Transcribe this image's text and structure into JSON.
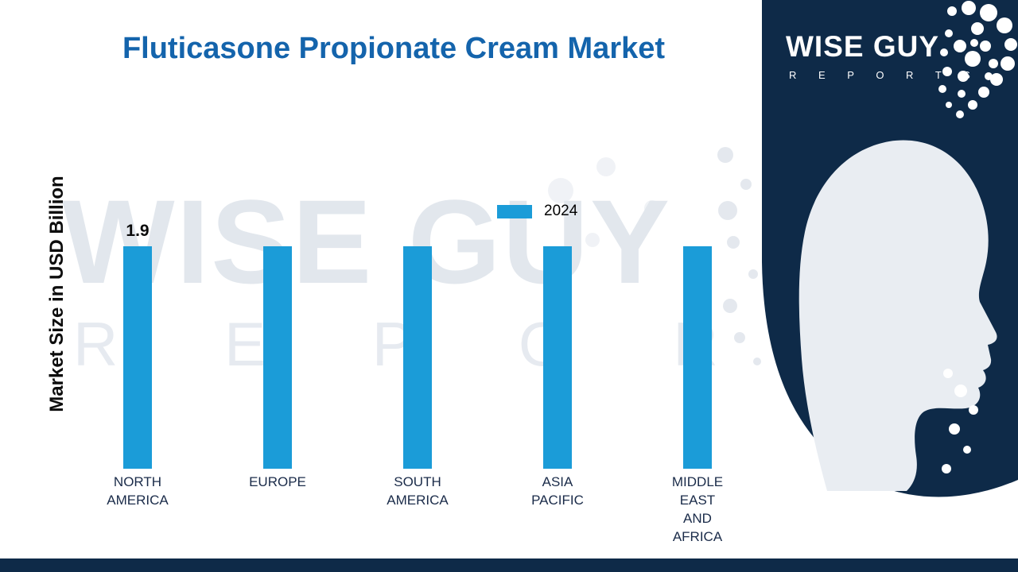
{
  "title": "Fluticasone Propionate Cream Market",
  "logo": {
    "line1": "WISE GUY",
    "line2": "R E P O R T S"
  },
  "watermark": {
    "line1": "WISE GUY",
    "line2": "R E P O R T S"
  },
  "y_axis_label": "Market Size in USD Billion",
  "legend": {
    "label": "2024",
    "color": "#1b9cd8"
  },
  "colors": {
    "title": "#1464ac",
    "bar": "#1b9cd8",
    "navy": "#0e2a48",
    "category_label": "#1a2b49"
  },
  "chart_data": {
    "type": "bar",
    "title": "Fluticasone Propionate Cream Market",
    "ylabel": "Market Size in USD Billion",
    "legend": [
      "2024"
    ],
    "legend_position": "top, right of center",
    "categories": [
      "NORTH AMERICA",
      "EUROPE",
      "SOUTH AMERICA",
      "ASIA PACIFIC",
      "MIDDLE EAST AND AFRICA"
    ],
    "values": [
      1.9,
      1.9,
      1.9,
      1.9,
      1.9
    ],
    "value_labels": [
      "1.9",
      "",
      "",
      "",
      ""
    ],
    "ylim": [
      0,
      2.1
    ],
    "grid": false,
    "bar_color": "#1b9cd8"
  },
  "bars": [
    {
      "lines": [
        "NORTH",
        "AMERICA"
      ],
      "value": 1.9,
      "value_label": "1.9"
    },
    {
      "lines": [
        "EUROPE"
      ],
      "value": 1.9,
      "value_label": ""
    },
    {
      "lines": [
        "SOUTH",
        "AMERICA"
      ],
      "value": 1.9,
      "value_label": ""
    },
    {
      "lines": [
        "ASIA",
        "PACIFIC"
      ],
      "value": 1.9,
      "value_label": ""
    },
    {
      "lines": [
        "MIDDLE",
        "EAST",
        "AND",
        "AFRICA"
      ],
      "value": 1.9,
      "value_label": ""
    }
  ]
}
